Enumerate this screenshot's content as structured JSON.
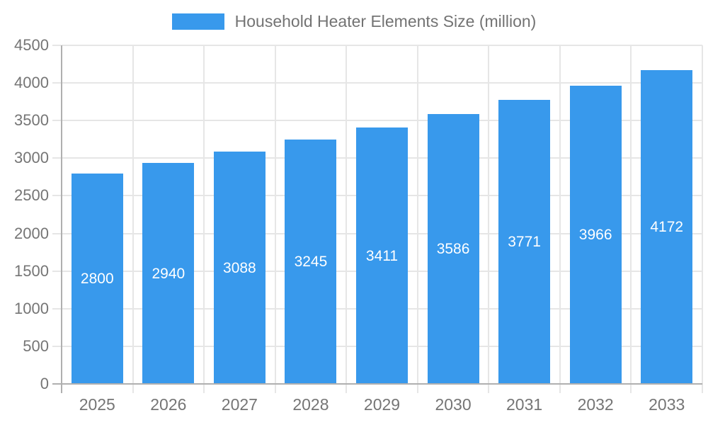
{
  "chart_data": {
    "type": "bar",
    "title": "Household Heater Elements Size (million)",
    "legend": {
      "position": "top",
      "label": "Household Heater Elements Size (million)"
    },
    "categories": [
      "2025",
      "2026",
      "2027",
      "2028",
      "2029",
      "2030",
      "2031",
      "2032",
      "2033"
    ],
    "series": [
      {
        "name": "Household Heater Elements Size (million)",
        "values": [
          2800,
          2940,
          3088,
          3245,
          3411,
          3586,
          3771,
          3966,
          4172
        ]
      }
    ],
    "value_labels_shown": true,
    "xlabel": "",
    "ylabel": "",
    "ylim": [
      0,
      4500
    ],
    "ytick_step": 500,
    "grid": "both"
  },
  "colors": {
    "bar": "#3899EC",
    "grid": "#E6E6E6",
    "axis": "#B0B0B0",
    "tick_text": "#757575",
    "legend_text": "#737373",
    "value_label_text": "#FFFFFF",
    "background": "#FFFFFF"
  }
}
